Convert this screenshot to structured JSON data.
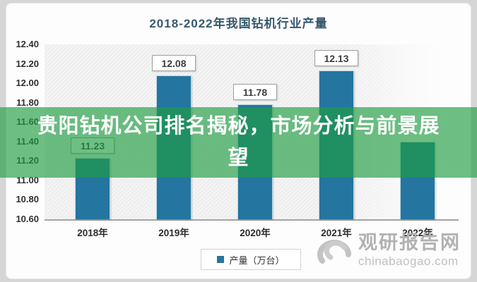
{
  "window": {
    "background_color": "#d6d6d6",
    "card_background": "#fdfdfd"
  },
  "chart_data": {
    "type": "bar",
    "title": "2018-2022年我国钻机行业产量",
    "categories": [
      "2018年",
      "2019年",
      "2020年",
      "2021年",
      "2022年"
    ],
    "values": [
      11.23,
      12.08,
      11.78,
      12.13,
      11.4
    ],
    "value_labels": [
      "11.23",
      "12.08",
      "11.78",
      "12.13",
      ""
    ],
    "series_name": "产量（万台）",
    "xlabel": "",
    "ylabel": "",
    "ylim": [
      10.6,
      12.4
    ],
    "y_tick_step": 0.2,
    "y_tick_labels": [
      "12.40",
      "12.20",
      "12.00",
      "11.80",
      "11.60",
      "11.40",
      "11.20",
      "11.00",
      "10.80",
      "10.60"
    ],
    "grid": false,
    "legend_position": "bottom-center",
    "bar_color": "#24759f",
    "note": "2022 value label hidden behind overlay banner; 11.4 estimated from bar height"
  },
  "overlay_banner": {
    "full_text": "贵阳钻机公司排名揭秘，市场分析与前景展望",
    "lines": [
      "贵阳钻机公司排名揭秘，市场分析与前景展",
      "望"
    ],
    "background_color": "rgba(31,157,66,0.65)",
    "text_color": "#ffffff"
  },
  "watermark": {
    "site_name": "观研报告网",
    "site_url": "chinabaogao.com"
  }
}
